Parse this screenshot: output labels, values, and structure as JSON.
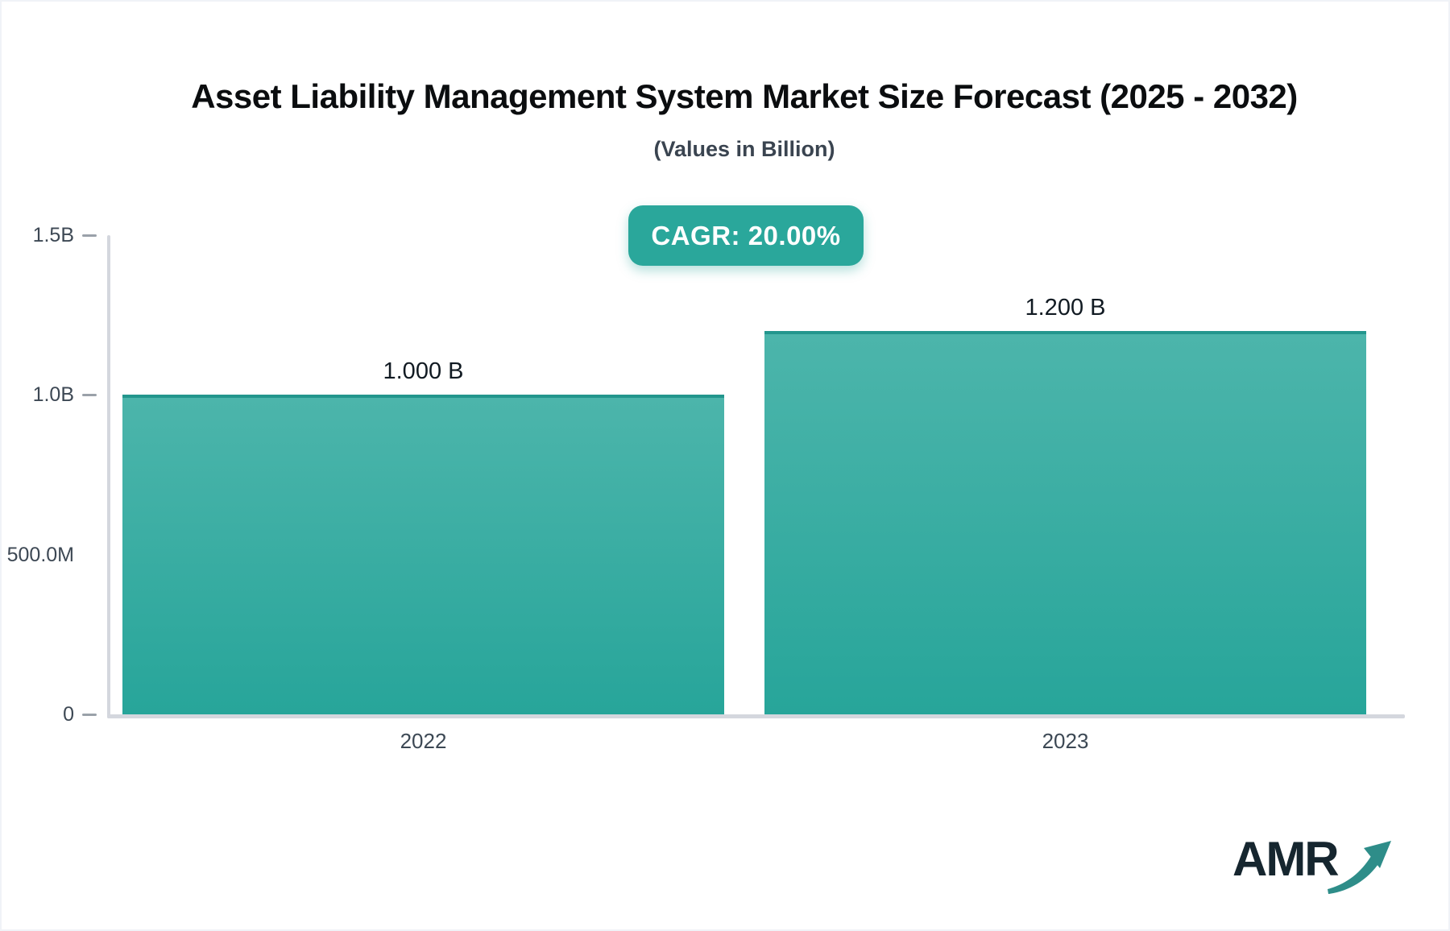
{
  "header": {
    "title": "Asset Liability Management System Market Size Forecast (2025 - 2032)",
    "subtitle": "(Values in Billion)",
    "cagr_badge": "CAGR: 20.00%"
  },
  "chart_data": {
    "type": "bar",
    "title": "Asset Liability Management System Market Size Forecast (2025 - 2032)",
    "subtitle": "(Values in Billion)",
    "unit": "Billion",
    "cagr": "20.00%",
    "categories": [
      "2022",
      "2023"
    ],
    "values": [
      1.0,
      1.2
    ],
    "value_labels": [
      "1.000 B",
      "1.200 B"
    ],
    "ylim": [
      0,
      1.5
    ],
    "yticks": [
      {
        "value": 0,
        "label": "0",
        "dash": true
      },
      {
        "value": 0.5,
        "label": "500.0M",
        "dash": false
      },
      {
        "value": 1.0,
        "label": "1.0B",
        "dash": true
      },
      {
        "value": 1.5,
        "label": "1.5B",
        "dash": true
      }
    ],
    "grid": false,
    "legend_position": "none"
  },
  "branding": {
    "logo_text": "AMR"
  },
  "colors": {
    "badge_bg": "#2aa79b",
    "bar_gradient_top": "#4cb5ab",
    "bar_gradient_bottom": "#27a59a",
    "bar_border_top": "#23968d",
    "axis_line": "#d4d7de",
    "tick_dash": "#9aa1a9",
    "logo_arrow": "#2e8d89"
  }
}
